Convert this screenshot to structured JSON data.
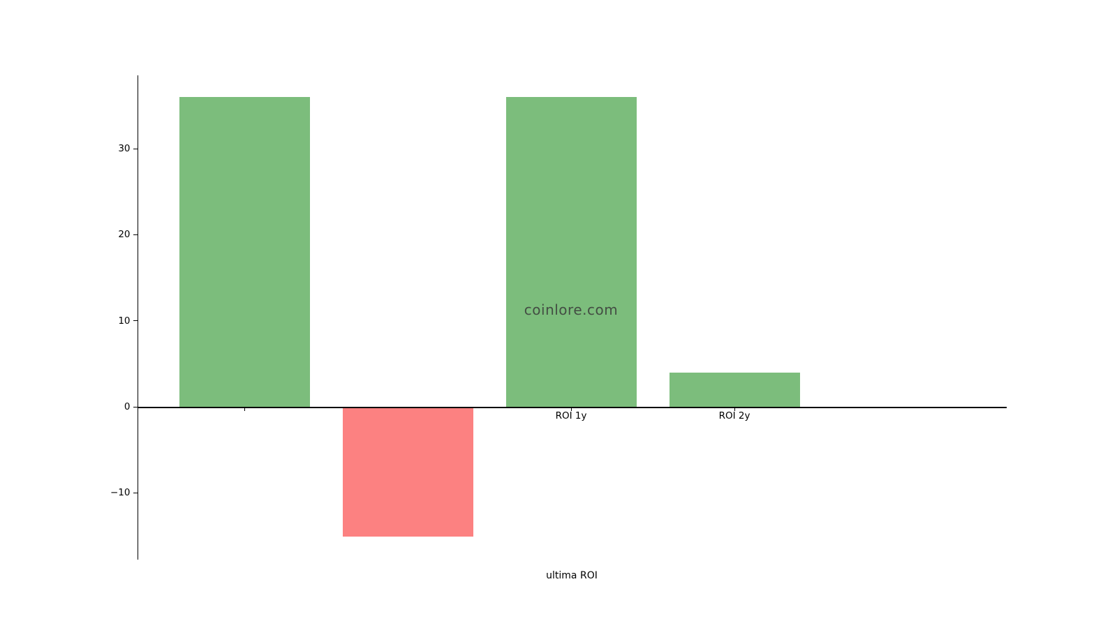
{
  "chart_data": {
    "type": "bar",
    "title": "ultima ROI",
    "watermark": "coinlore.com",
    "categories": [
      "",
      "",
      "ROI 1y",
      "ROI 2y"
    ],
    "values": [
      36,
      -15,
      36,
      4
    ],
    "bar_colors": [
      "#7cbd7c",
      "#fc8181",
      "#7cbd7c",
      "#7cbd7c"
    ],
    "positive_color": "#7cbd7c",
    "negative_color": "#fc8181",
    "yticks": [
      {
        "value": 30,
        "label": "30"
      },
      {
        "value": 20,
        "label": "20"
      },
      {
        "value": 10,
        "label": "10"
      },
      {
        "value": 0,
        "label": "0"
      },
      {
        "value": -10,
        "label": "−10"
      }
    ],
    "ylim": [
      -17.8,
      38.6
    ],
    "xlabel": "ultima ROI",
    "grid": false,
    "legend_position": "none",
    "axis_color": "#000000",
    "text_color": "#000000",
    "watermark_color": "#3a3a3a",
    "background_color": "#ffffff"
  }
}
